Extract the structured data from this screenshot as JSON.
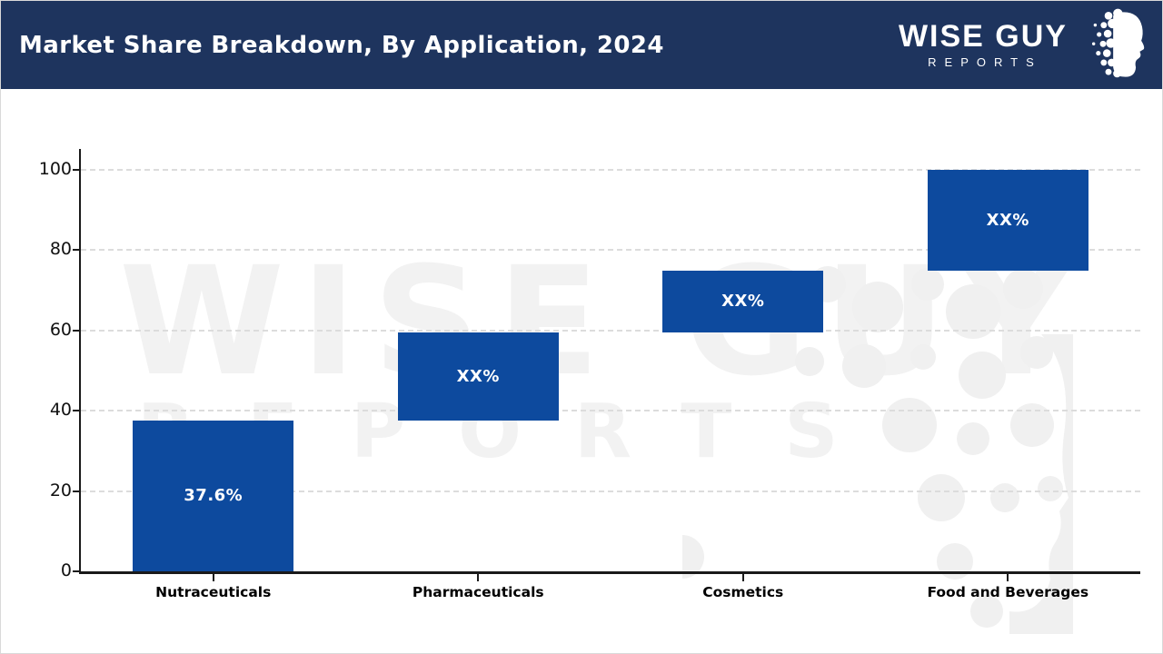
{
  "header": {
    "title": "Market Share Breakdown, By Application, 2024",
    "logo": {
      "line1": "WISE GUY",
      "line2": "REPORTS"
    }
  },
  "watermark": {
    "line1": "WISE GUY",
    "line2": "REPORTS"
  },
  "chart_data": {
    "type": "bar",
    "subtype": "waterfall",
    "title": "Market Share Breakdown, By Application, 2024",
    "xlabel": "",
    "ylabel": "",
    "categories": [
      "Nutraceuticals",
      "Pharmaceuticals",
      "Cosmetics",
      "Food and Beverages"
    ],
    "bars": [
      {
        "category": "Nutraceuticals",
        "start": 0,
        "end": 37.6,
        "label": "37.6%"
      },
      {
        "category": "Pharmaceuticals",
        "start": 37.6,
        "end": 59.5,
        "label": "XX%"
      },
      {
        "category": "Cosmetics",
        "start": 59.5,
        "end": 75,
        "label": "XX%"
      },
      {
        "category": "Food and Beverages",
        "start": 75,
        "end": 100,
        "label": "XX%"
      }
    ],
    "yticks": [
      0,
      20,
      40,
      60,
      80,
      100
    ],
    "ylim": [
      0,
      105
    ],
    "grid": "horizontal-dashed",
    "legend": "none",
    "bar_color": "#0d4a9e",
    "bar_label_color": "#ffffff",
    "header_color": "#1e345e",
    "gridline_color": "#dcdcdc",
    "axis_color": "#1a1a1a",
    "watermark_color": "#f2f2f2"
  }
}
